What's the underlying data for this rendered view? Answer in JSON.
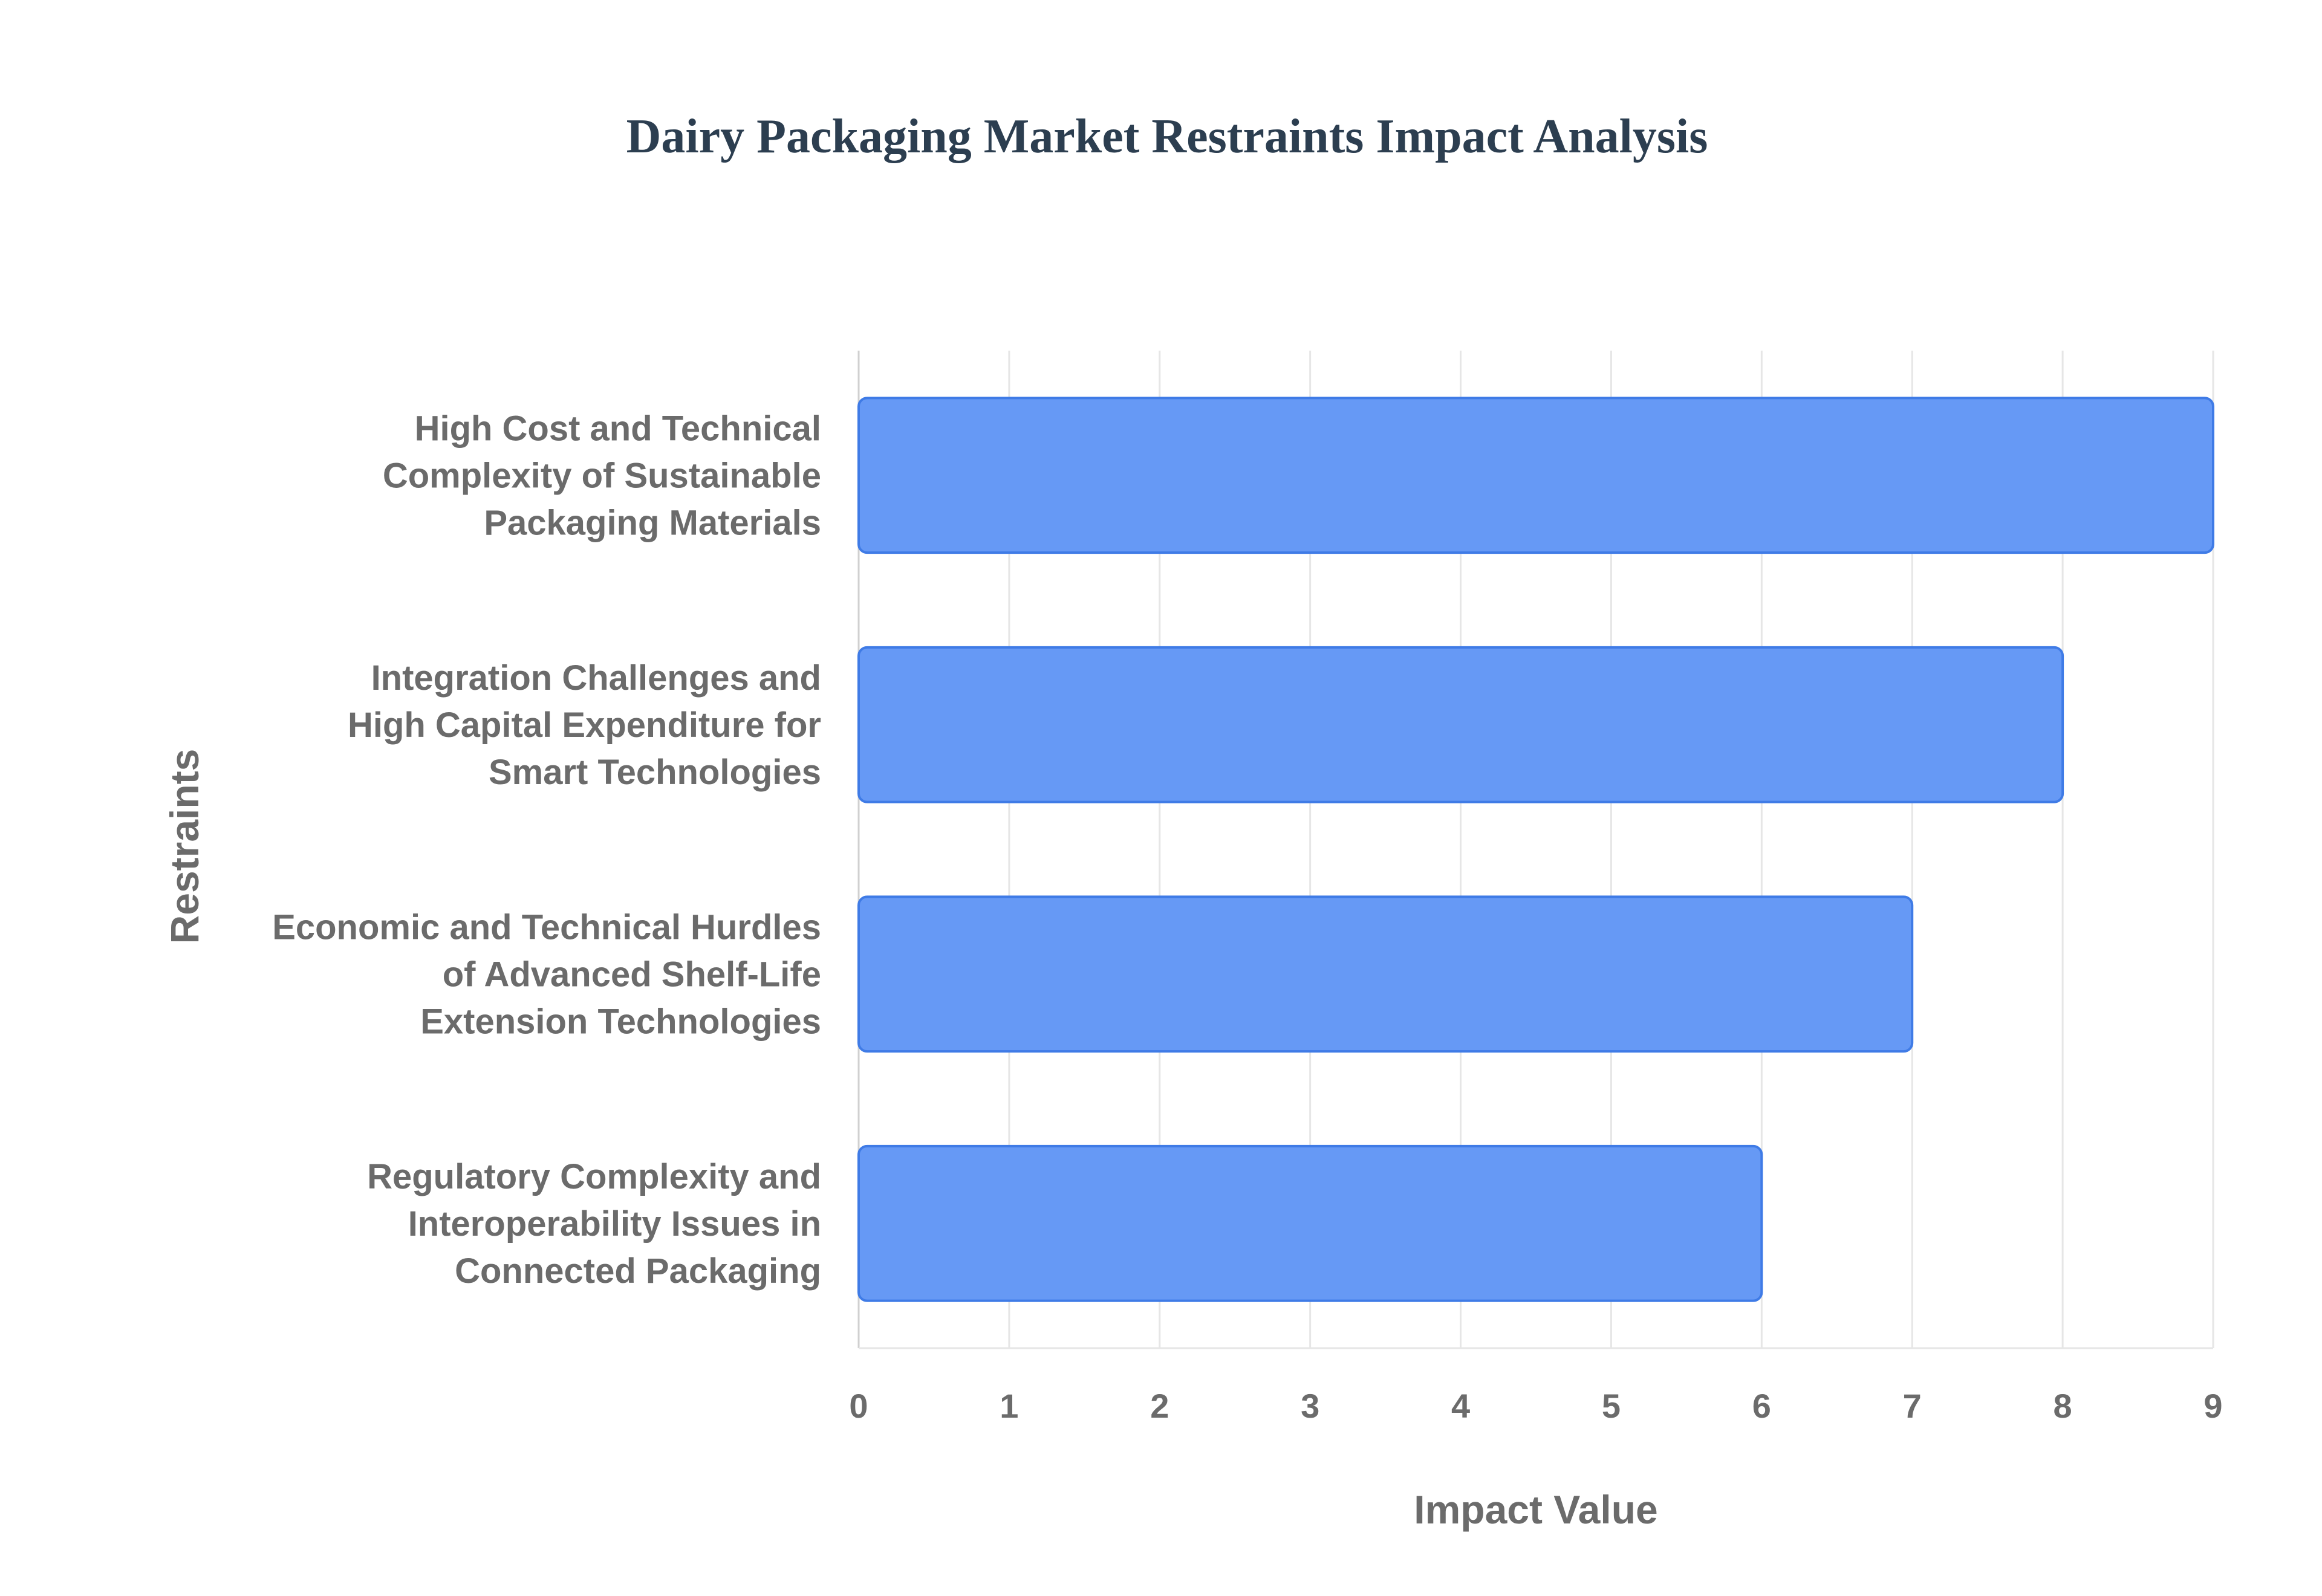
{
  "chart_data": {
    "type": "bar",
    "orientation": "horizontal",
    "title": "Dairy Packaging Market Restraints Impact Analysis",
    "xlabel": "Impact Value",
    "ylabel": "Restraints",
    "xlim": [
      0,
      9
    ],
    "x_ticks": [
      "0",
      "1",
      "2",
      "3",
      "4",
      "5",
      "6",
      "7",
      "8",
      "9"
    ],
    "grid": true,
    "categories": [
      [
        "High Cost and Technical",
        "Complexity of Sustainable",
        "Packaging Materials"
      ],
      [
        "Integration Challenges and",
        "High Capital Expenditure for",
        "Smart Technologies"
      ],
      [
        "Economic and Technical Hurdles",
        "of Advanced Shelf-Life",
        "Extension Technologies"
      ],
      [
        "Regulatory Complexity and",
        "Interoperability Issues in",
        "Connected Packaging"
      ]
    ],
    "values": [
      9,
      8,
      7,
      6
    ]
  },
  "colors": {
    "bar_fill": "#6699f5",
    "bar_stroke": "#3f7be6",
    "title": "#2c3e50",
    "axis_text": "#6b6b6b",
    "grid": "#e6e6e6"
  }
}
